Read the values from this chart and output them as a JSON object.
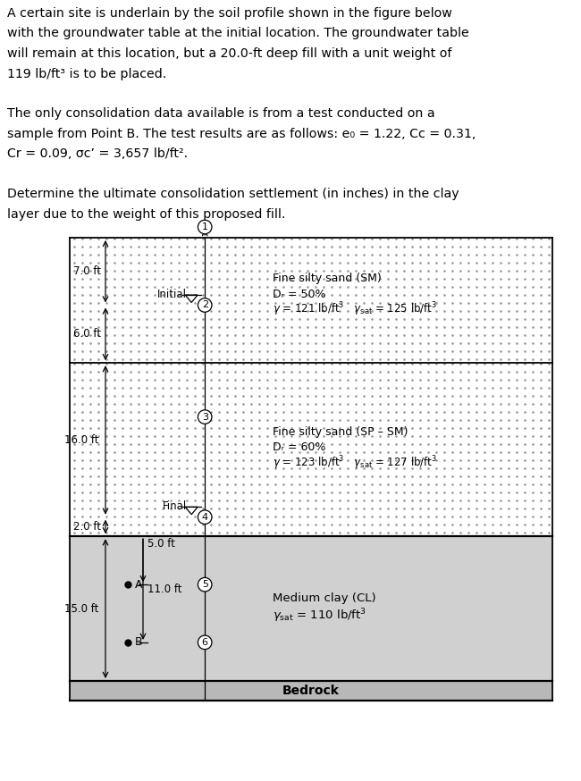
{
  "text_lines": [
    [
      "A certain site is underlain by the soil profile shown in the figure below"
    ],
    [
      "with the groundwater table at the initial location. The groundwater table"
    ],
    [
      "will remain at this location, but a 20.0-ft deep fill with a unit weight of"
    ],
    [
      "119 lb/ft³ is to be placed."
    ],
    [
      ""
    ],
    [
      "The only consolidation data available is from a test conducted on a"
    ],
    [
      "sample from Point B. The test results are as follows: e₀ = 1.22, Cc = 0.31,"
    ],
    [
      "Cr = 0.09, σₑ’ = 3,657 lb/ft²."
    ],
    [
      ""
    ],
    [
      "Determine the ultimate consolidation settlement (in inches) in the clay"
    ],
    [
      "layer due to the weight of this proposed fill."
    ]
  ],
  "layer1_label1": "Fine silty sand (SM)",
  "layer1_label2": "Dᵣ = 50%",
  "layer1_label3": "γ = 121 lb/ft³",
  "layer1_label3b": "γsat = 125 lb/ft³",
  "layer2_label1": "Fine silty sand (SP – SM)",
  "layer2_label2": "Dᵣ = 60%",
  "layer2_label3": "γ = 123 lb/ft³",
  "layer2_label3b": "γsat = 127 lb/ft³",
  "layer3_label1": "Medium clay (CL)",
  "layer3_label2": "γsat = 110 lb/ft³",
  "bedrock_label": "Bedrock",
  "initial_label": "Initial",
  "final_label": "Final",
  "dim_7ft": "7.0 ft",
  "dim_6ft": "6.0 ft",
  "dim_16ft": "16.0 ft",
  "dim_2ft": "2.0 ft",
  "dim_15ft": "15.0 ft",
  "dim_5ft": "5.0 ft",
  "dim_11ft": "11.0 ft",
  "sand_dot_color": "#999999",
  "clay_bg": "#d0d0d0",
  "bedrock_bg": "#b0b0b0"
}
